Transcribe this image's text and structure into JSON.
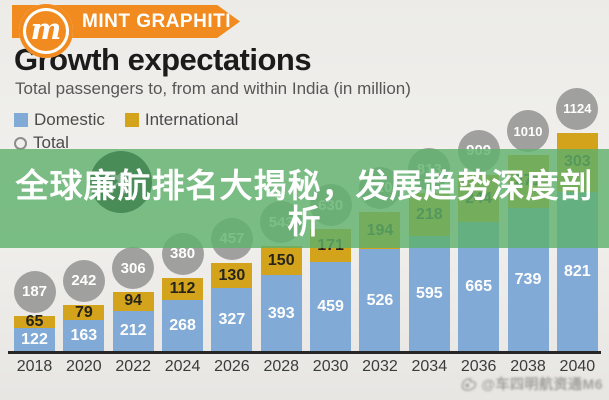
{
  "header": {
    "brand": "MINT GRAPHITI",
    "logo_letter": "m"
  },
  "title": "Growth expectations",
  "subtitle": "Total passengers to, from and within India (in million)",
  "legend": {
    "domestic": "Domestic",
    "international": "International",
    "total": "Total"
  },
  "overlay_banner": {
    "line1": "全球廉航排名大揭秘，发展趋势深度剖",
    "line2": "析"
  },
  "watermark": {
    "icon": "weibo-icon",
    "text": "@车四明航资通M6"
  },
  "colors": {
    "brand_orange": "#F18B1F",
    "domestic_blue": "#82AAD6",
    "international_yellow": "#D2A31B",
    "total_circle_gray": "#A0A09E",
    "overlay_green": "rgba(95,177,109,0.82)",
    "background": "#EFEEEB"
  },
  "chart_data": {
    "type": "bar",
    "stacked": true,
    "title": "Growth expectations",
    "subtitle": "Total passengers to, from and within India (in million)",
    "unit": "million passengers",
    "categories": [
      "2018",
      "2020",
      "2022",
      "2024",
      "2026",
      "2028",
      "2030",
      "2032",
      "2034",
      "2036",
      "2038",
      "2040"
    ],
    "series": [
      {
        "name": "Domestic",
        "color": "#82AAD6",
        "values": [
          122,
          163,
          212,
          268,
          327,
          393,
          459,
          526,
          595,
          665,
          739,
          821
        ]
      },
      {
        "name": "International",
        "color": "#D2A31B",
        "values": [
          65,
          79,
          94,
          112,
          130,
          150,
          171,
          194,
          218,
          244,
          271,
          303
        ]
      }
    ],
    "totals": [
      187,
      242,
      306,
      380,
      457,
      543,
      630,
      720,
      813,
      909,
      1010,
      1124
    ],
    "ylim": [
      0,
      1150
    ],
    "grid": false,
    "legend_position": "top-left"
  }
}
